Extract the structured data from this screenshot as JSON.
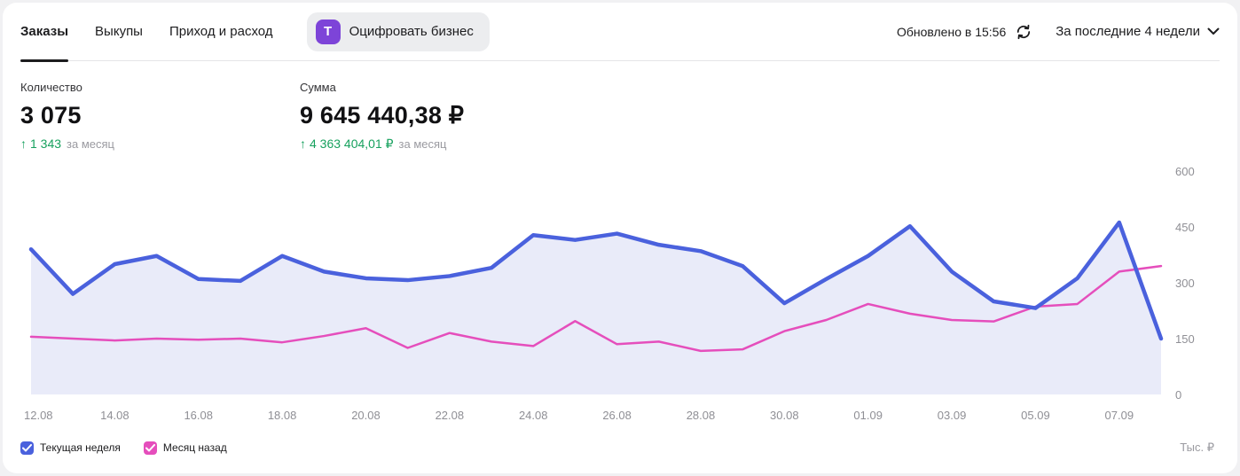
{
  "header": {
    "tabs": [
      {
        "label": "Заказы",
        "active": true
      },
      {
        "label": "Выкупы",
        "active": false
      },
      {
        "label": "Приход и расход",
        "active": false
      }
    ],
    "digitize_button": {
      "label": "Оцифровать бизнес",
      "icon_letter": "Т"
    },
    "updated_text": "Обновлено в 15:56",
    "period_selector": "За последние 4 недели"
  },
  "icons": {
    "up_arrow": "↑",
    "refresh": "refresh-circular-arrows",
    "chevron": "chevron-down"
  },
  "stats": {
    "quantity": {
      "label": "Количество",
      "value": "3 075",
      "delta": "1 343",
      "delta_suffix": "за месяц"
    },
    "sum": {
      "label": "Сумма",
      "value": "9 645 440,38 ₽",
      "delta": "4 363 404,01 ₽",
      "delta_suffix": "за месяц"
    }
  },
  "chart_data": {
    "type": "line",
    "x": [
      "12.08",
      "13.08",
      "14.08",
      "15.08",
      "16.08",
      "17.08",
      "18.08",
      "19.08",
      "20.08",
      "21.08",
      "22.08",
      "23.08",
      "24.08",
      "25.08",
      "26.08",
      "27.08",
      "28.08",
      "29.08",
      "30.08",
      "31.08",
      "01.09",
      "02.09",
      "03.09",
      "04.09",
      "05.09",
      "06.09",
      "07.09",
      "08.09"
    ],
    "x_tick_labels": [
      "12.08",
      "14.08",
      "16.08",
      "18.08",
      "20.08",
      "22.08",
      "24.08",
      "26.08",
      "28.08",
      "30.08",
      "01.09",
      "03.09",
      "05.09",
      "07.09"
    ],
    "series": [
      {
        "name": "Текущая неделя",
        "color": "#4a61dd",
        "values": [
          390,
          270,
          350,
          372,
          310,
          305,
          372,
          330,
          312,
          307,
          318,
          340,
          428,
          415,
          432,
          402,
          385,
          345,
          245,
          310,
          372,
          452,
          330,
          250,
          232,
          312,
          462,
          150
        ]
      },
      {
        "name": "Месяц назад",
        "color": "#e54ebc",
        "values": [
          155,
          150,
          145,
          150,
          147,
          150,
          140,
          157,
          178,
          125,
          165,
          142,
          130,
          197,
          135,
          142,
          117,
          121,
          170,
          200,
          243,
          217,
          200,
          196,
          236,
          243,
          330,
          345
        ]
      }
    ],
    "ylim": [
      0,
      600
    ],
    "y_ticks": [
      0,
      150,
      300,
      450,
      600
    ],
    "y_unit": "Тыс. ₽",
    "area_fill_series": 0,
    "area_color": "#e9ebf9",
    "grid": false,
    "legend_position": "bottom-left",
    "tick_color": "#8f8f95"
  }
}
